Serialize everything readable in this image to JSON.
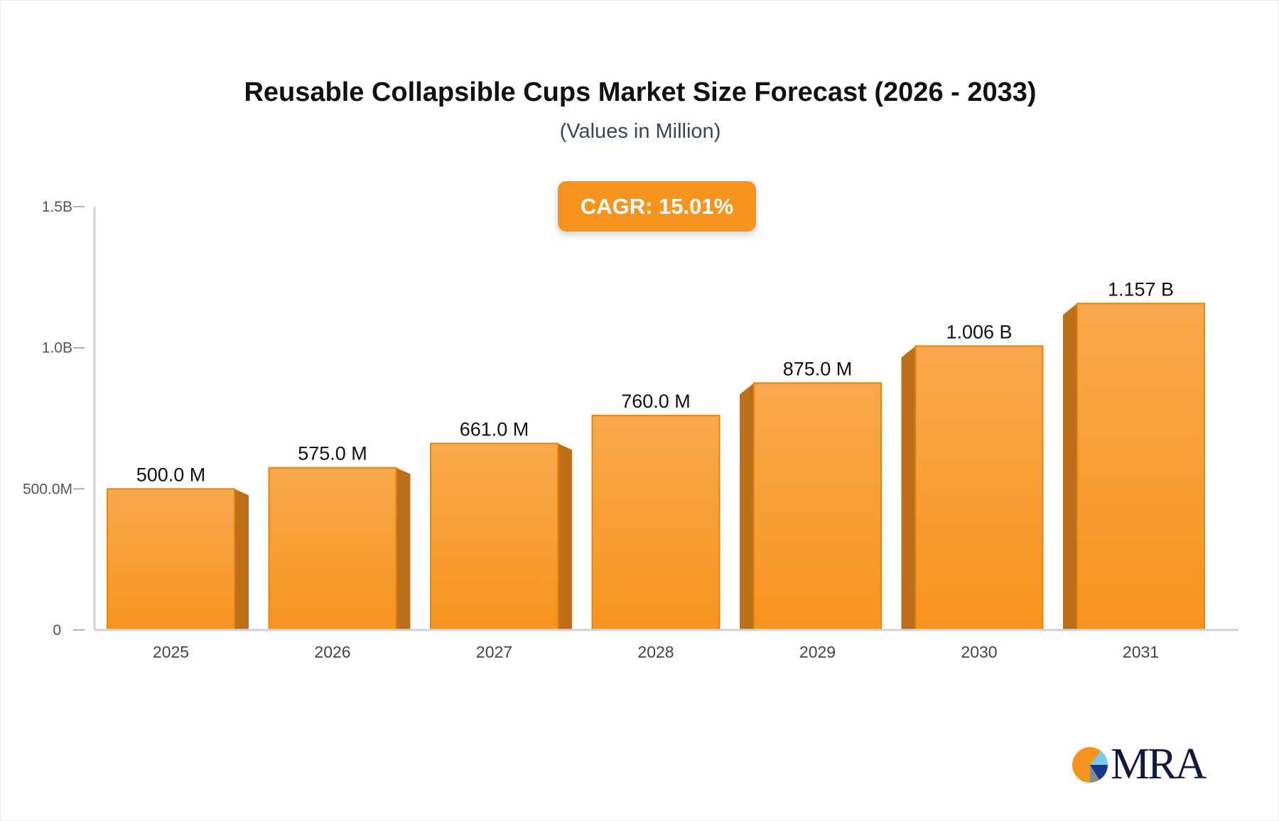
{
  "chart_data": {
    "type": "bar",
    "title": "Reusable Collapsible Cups Market Size Forecast (2026 - 2033)",
    "subtitle": "(Values in Million)",
    "annotation": "CAGR: 15.01%",
    "categories": [
      "2025",
      "2026",
      "2027",
      "2028",
      "2029",
      "2030",
      "2031"
    ],
    "values": [
      500.0,
      575.0,
      661.0,
      760.0,
      875.0,
      1006,
      1157
    ],
    "data_labels": [
      "500.0 M",
      "575.0 M",
      "661.0 M",
      "760.0 M",
      "875.0 M",
      "1.006 B",
      "1.157 B"
    ],
    "unit": "Million",
    "ylim": [
      0,
      1500
    ],
    "yticks": [
      {
        "value": 0,
        "label": "0"
      },
      {
        "value": 500,
        "label": "500.0M"
      },
      {
        "value": 1000,
        "label": "1.0B"
      },
      {
        "value": 1500,
        "label": "1.5B"
      }
    ],
    "grid": false,
    "colors": {
      "bar": "#f7941d",
      "bar_top": "#f8a84c",
      "side": "#bd7019",
      "axis": "#d0d3dc",
      "badge": "#f7941d"
    }
  },
  "logo": {
    "text": "MRA"
  }
}
